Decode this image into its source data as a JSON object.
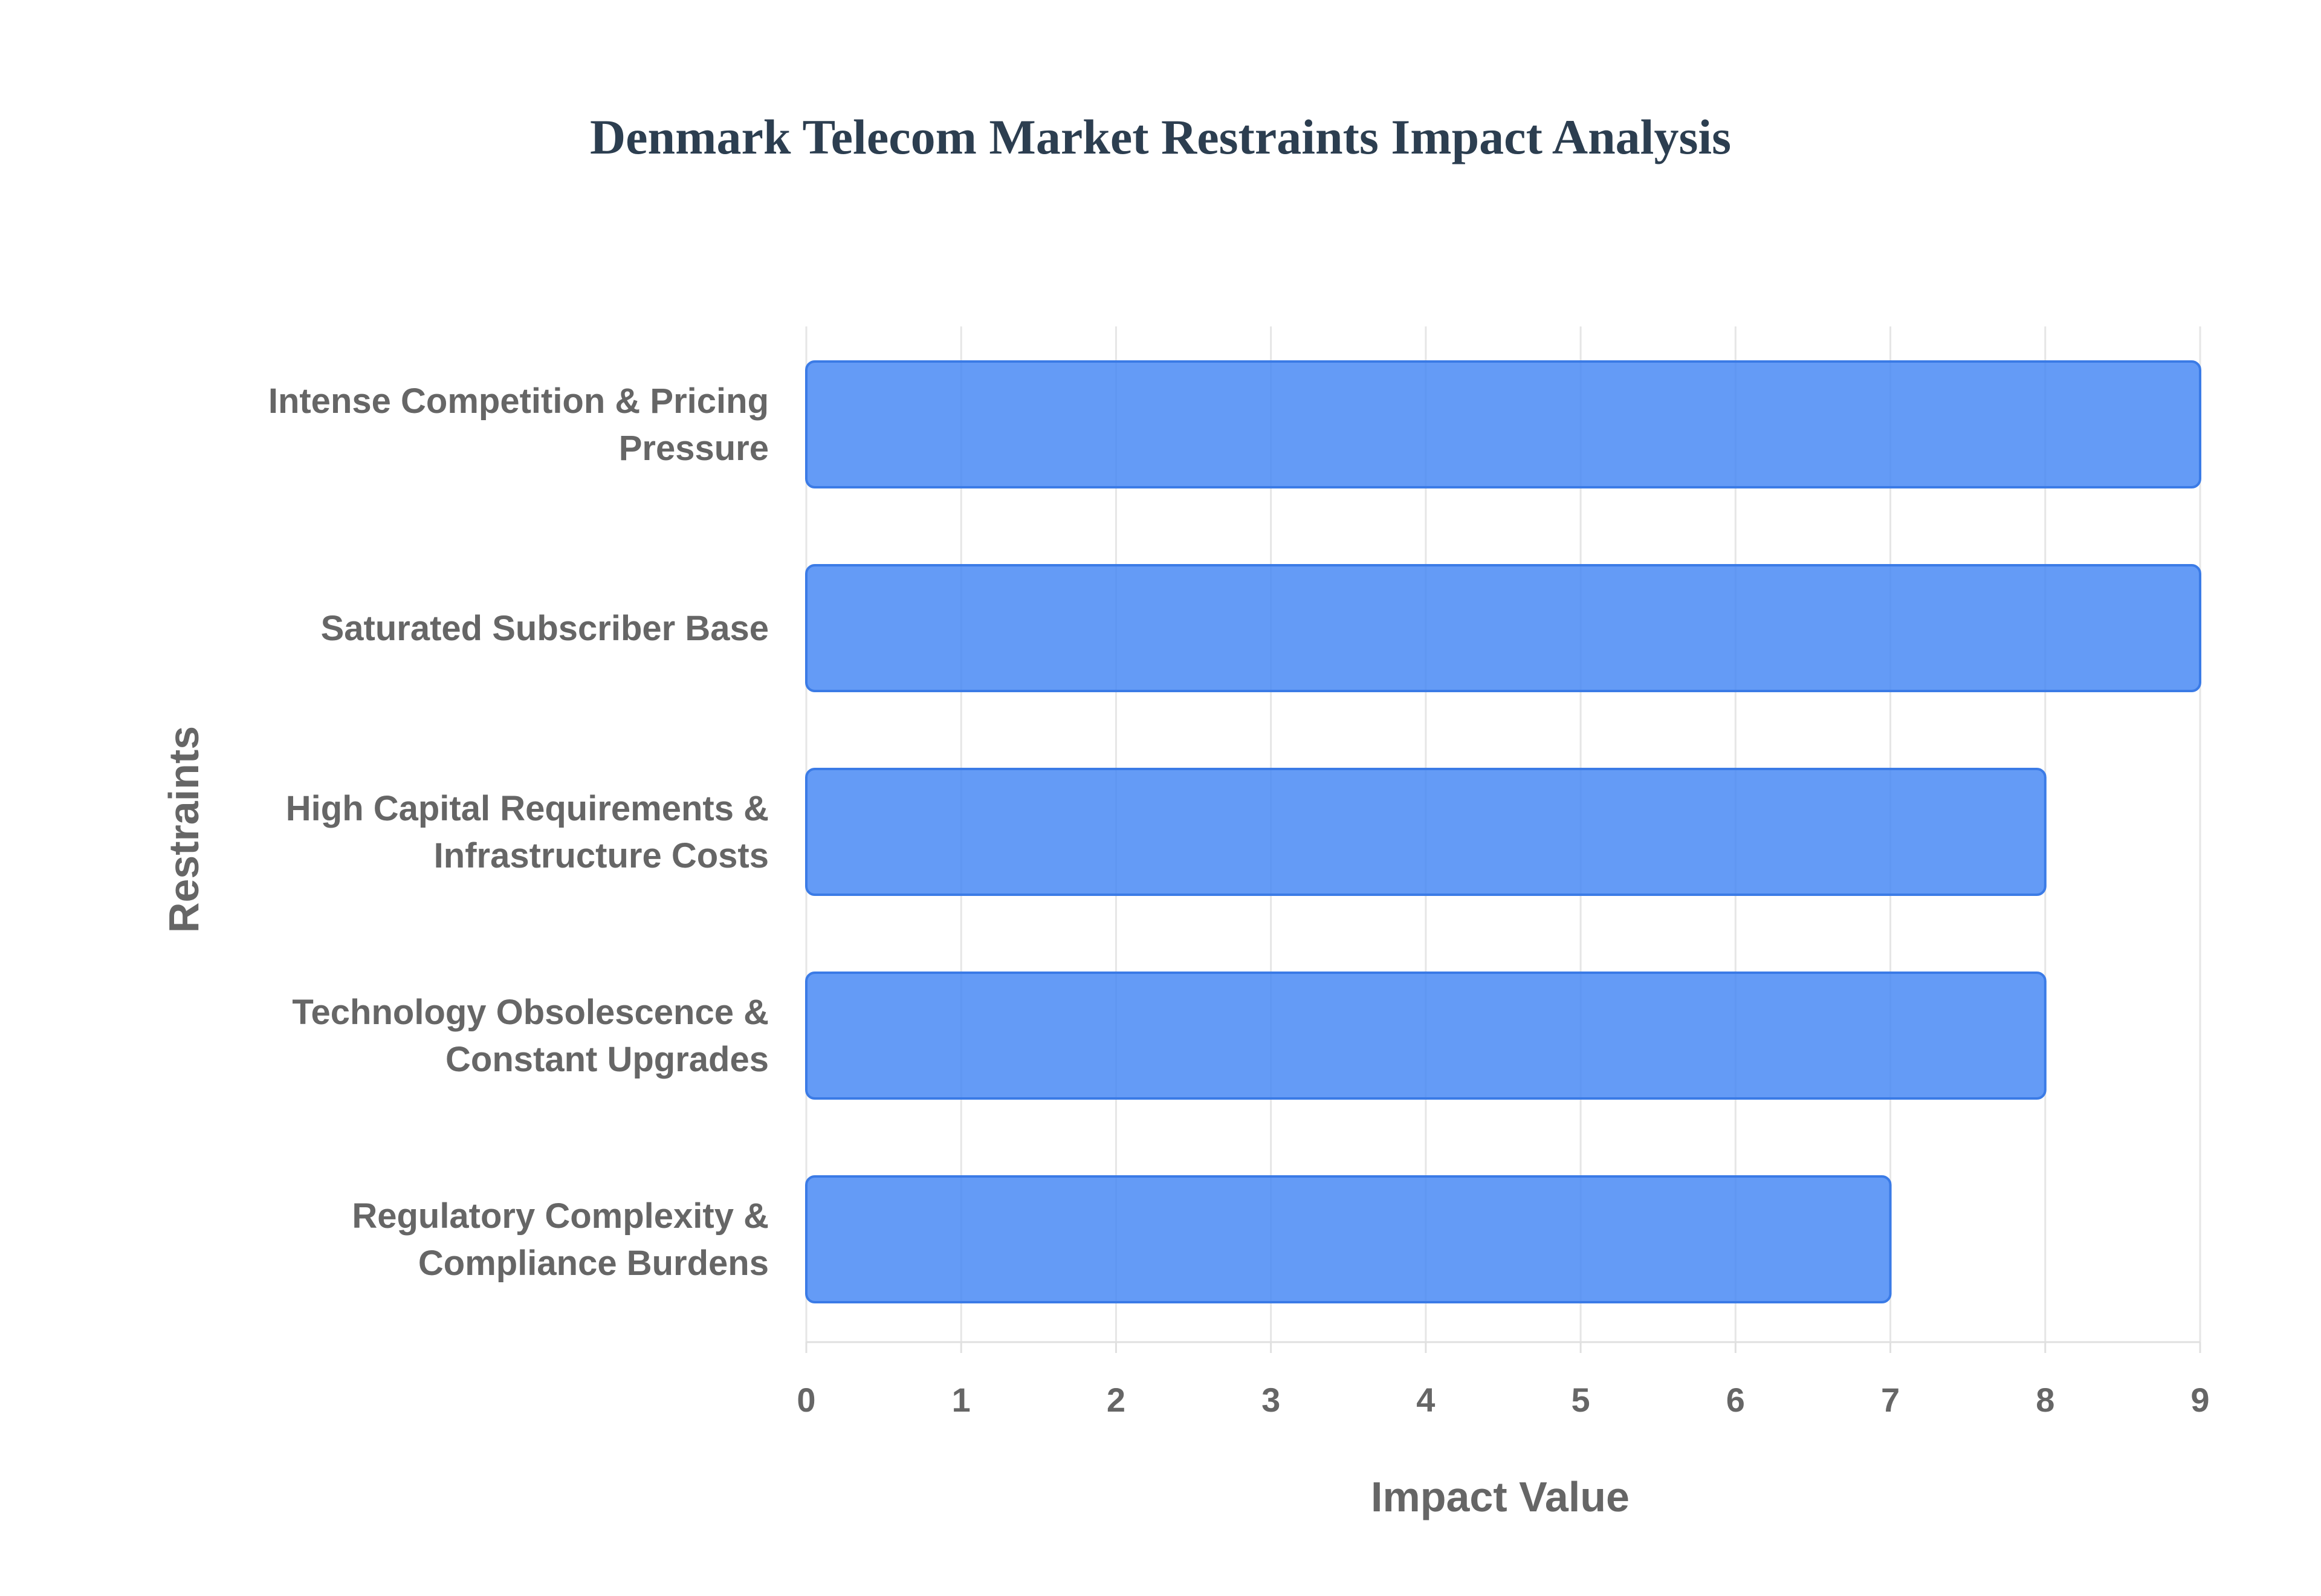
{
  "chart_data": {
    "type": "bar",
    "orientation": "horizontal",
    "title": "Denmark Telecom Market Restraints Impact Analysis",
    "xlabel": "Impact Value",
    "ylabel": "Restraints",
    "categories": [
      [
        "Intense Competition & Pricing",
        "Pressure"
      ],
      [
        "Saturated Subscriber Base"
      ],
      [
        "High Capital Requirements &",
        "Infrastructure Costs"
      ],
      [
        "Technology Obsolescence &",
        "Constant Upgrades"
      ],
      [
        "Regulatory Complexity &",
        "Compliance Burdens"
      ]
    ],
    "values": [
      9,
      9,
      8,
      8,
      7
    ],
    "xlim": [
      0,
      9
    ],
    "xticks": [
      "0",
      "1",
      "2",
      "3",
      "4",
      "5",
      "6",
      "7",
      "8",
      "9"
    ],
    "grid": true,
    "bar_color": "#4285f4"
  }
}
